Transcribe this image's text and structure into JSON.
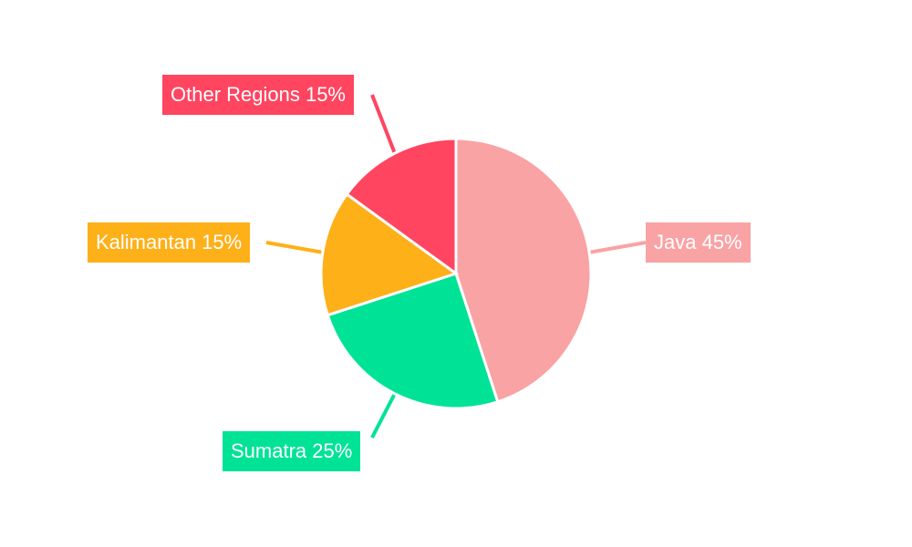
{
  "chart_data": {
    "type": "pie",
    "title": "",
    "categories": [
      "Java",
      "Sumatra",
      "Kalimantan",
      "Other Regions"
    ],
    "values": [
      45,
      25,
      15,
      15
    ],
    "unit": "%",
    "colors": [
      "#f9a3a4",
      "#00e396",
      "#feb019",
      "#ff4560"
    ],
    "start_angle_deg": 0,
    "direction": "clockwise",
    "labels": [
      {
        "text": "Java 45%",
        "color": "#f9a3a4"
      },
      {
        "text": "Sumatra 25%",
        "color": "#00e396"
      },
      {
        "text": "Kalimantan 15%",
        "color": "#feb019"
      },
      {
        "text": "Other Regions 15%",
        "color": "#ff4560"
      }
    ],
    "legend": "none (callout labels)"
  }
}
